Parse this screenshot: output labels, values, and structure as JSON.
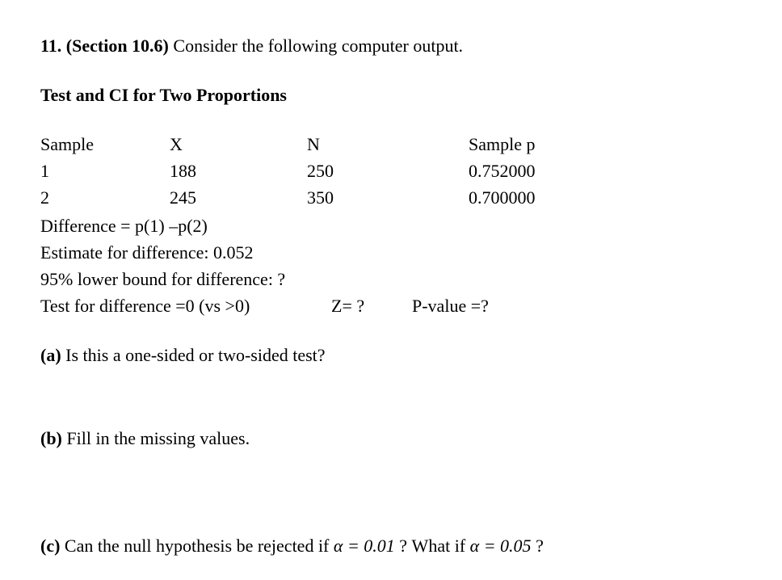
{
  "header": {
    "number": "11.",
    "section": "(Section 10.6)",
    "tail": " Consider the following computer output."
  },
  "subhead": "Test and CI for Two Proportions",
  "table": {
    "headers": {
      "sample": "Sample",
      "x": "X",
      "n": "N",
      "p": "Sample p"
    },
    "rows": [
      {
        "sample": "1",
        "x": "188",
        "n": "250",
        "p": "0.752000"
      },
      {
        "sample": "2",
        "x": "245",
        "n": "350",
        "p": "0.700000"
      }
    ]
  },
  "lines": {
    "diff_def": "Difference = p(1) –p(2)",
    "est": "Estimate for difference: 0.052",
    "bound": "95% lower bound for difference: ?",
    "test_left": "Test for difference =0 (vs >0)",
    "test_z": "Z= ?",
    "test_p": "P-value =?"
  },
  "parts": {
    "a_label": "(a)",
    "a_text": " Is this a one-sided or two-sided test?",
    "b_label": "(b)",
    "b_text": "  Fill in the missing values.",
    "c_label": "(c)",
    "c_text_1": "  Can the null hypothesis be rejected if ",
    "c_alpha1": "α = 0.01",
    "c_text_2": "? What if ",
    "c_alpha2": "α = 0.05",
    "c_text_3": "?"
  }
}
